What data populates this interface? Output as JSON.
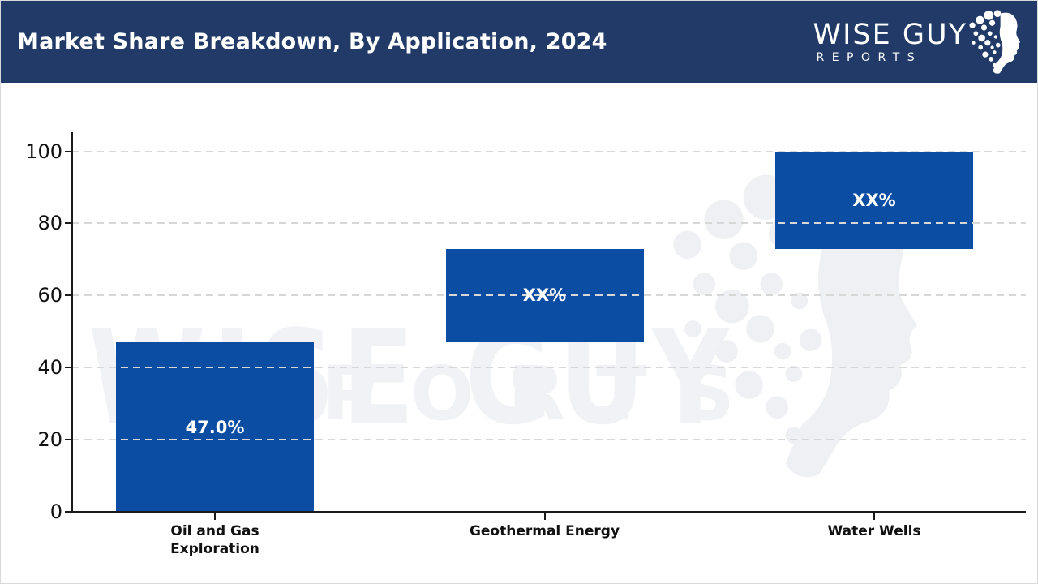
{
  "header": {
    "title": "Market Share Breakdown, By Application, 2024",
    "logo": {
      "line1": "WISE GUY",
      "line2": "REPORTS"
    }
  },
  "watermark": {
    "line1": "WISE GUY",
    "line2": "REPORTS"
  },
  "colors": {
    "header_bg": "#213a67",
    "bar": "#0b4da2",
    "bar_label": "#ffffff",
    "grid": "#d7d7d7",
    "axis": "#1a1a1a",
    "watermark": "#f1f2f5"
  },
  "chart_data": {
    "type": "bar",
    "subtype": "waterfall",
    "title": "Market Share Breakdown, By Application, 2024",
    "categories": [
      "Oil and Gas Exploration",
      "Geothermal Energy",
      "Water Wells"
    ],
    "category_label_lines": [
      [
        "Oil and Gas",
        "Exploration"
      ],
      [
        "Geothermal Energy"
      ],
      [
        "Water Wells"
      ]
    ],
    "bars": [
      {
        "category": "Oil and Gas Exploration",
        "base": 0,
        "top": 47,
        "label": "47.0%"
      },
      {
        "category": "Geothermal Energy",
        "base": 47,
        "top": 73,
        "label": "XX%"
      },
      {
        "category": "Water Wells",
        "base": 73,
        "top": 100,
        "label": "XX%"
      }
    ],
    "ylim": [
      0,
      100
    ],
    "yticks": [
      0,
      20,
      40,
      60,
      80,
      100
    ],
    "xlabel": "",
    "ylabel": "",
    "grid": "horizontal-dashed",
    "legend": "none"
  }
}
